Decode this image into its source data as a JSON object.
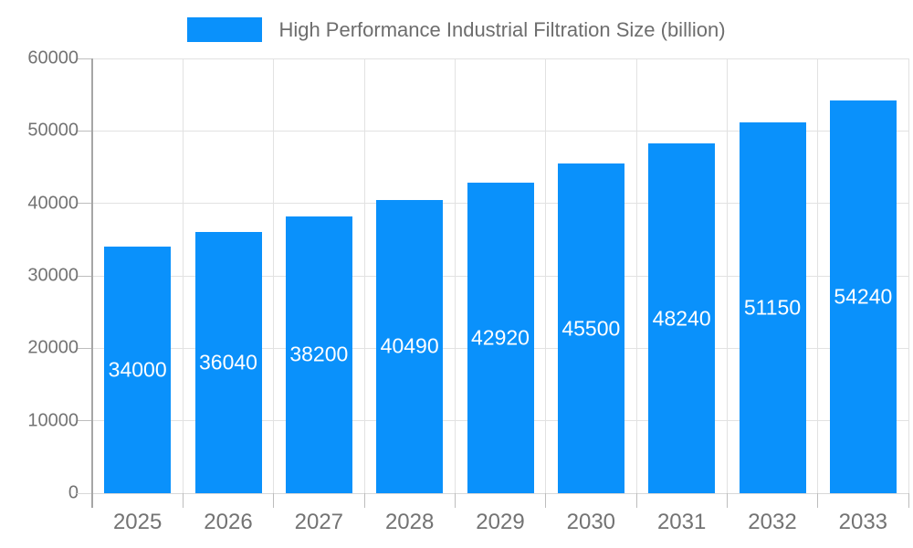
{
  "chart_data": {
    "type": "bar",
    "title": "High Performance Industrial Filtration Size (billion)",
    "categories": [
      "2025",
      "2026",
      "2027",
      "2028",
      "2029",
      "2030",
      "2031",
      "2032",
      "2033"
    ],
    "series": [
      {
        "name": "High Performance Industrial Filtration Size (billion)",
        "values": [
          34000,
          36040,
          38200,
          40490,
          42920,
          45500,
          48240,
          51150,
          54240
        ]
      }
    ],
    "value_labels": [
      "34000",
      "36040",
      "38200",
      "40490",
      "42920",
      "45500",
      "48240",
      "51150",
      "54240"
    ],
    "xlabel": "",
    "ylabel": "",
    "ylim": [
      0,
      60000
    ],
    "ytick_step": 10000,
    "yticks": [
      0,
      10000,
      20000,
      30000,
      40000,
      50000,
      60000
    ],
    "ytick_labels": [
      "0",
      "10000",
      "20000",
      "30000",
      "40000",
      "50000",
      "60000"
    ],
    "grid": "both",
    "legend_position": "top",
    "value_label_position": "inside-center"
  },
  "colors": {
    "bar": "#0a91fb",
    "value_label": "#ffffff",
    "axis_text": "#737373",
    "legend_text": "#6d6d6d",
    "gridline": "#e2e2e2",
    "baseline": "#d8d8d8",
    "y_axis_line": "#a6a6a6",
    "tick": "#bdbdbd"
  }
}
